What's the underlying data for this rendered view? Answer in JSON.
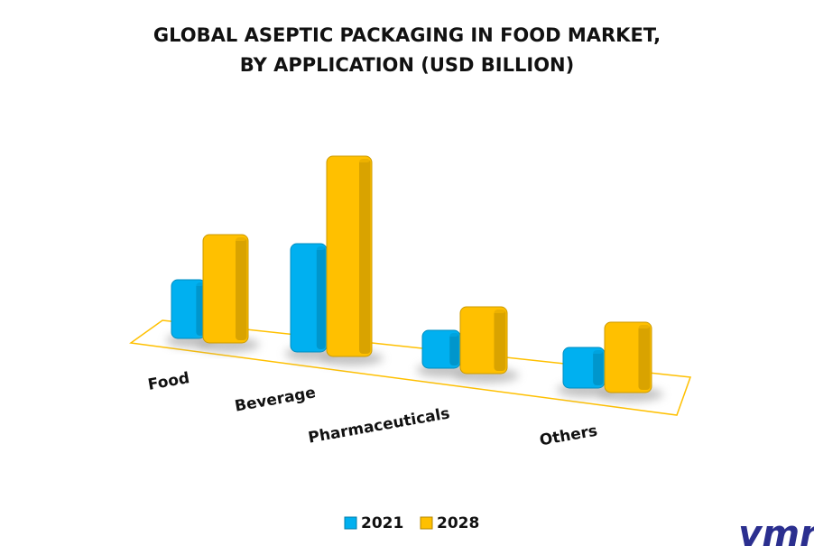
{
  "chart_data": {
    "type": "bar3d",
    "title": [
      "GLOBAL ASEPTIC PACKAGING IN FOOD MARKET,",
      "BY APPLICATION (USD BILLION)"
    ],
    "categories": [
      "Food",
      "Beverage",
      "Pharmaceuticals",
      "Others"
    ],
    "series": [
      {
        "name": "2021",
        "color": "#00b0f0",
        "values": [
          6.5,
          12,
          4.2,
          4.5
        ]
      },
      {
        "name": "2028",
        "color": "#ffc000",
        "values": [
          12,
          22.2,
          7.4,
          7.8
        ]
      }
    ],
    "floor_color": "#ffc000",
    "watermark": "vmr"
  }
}
